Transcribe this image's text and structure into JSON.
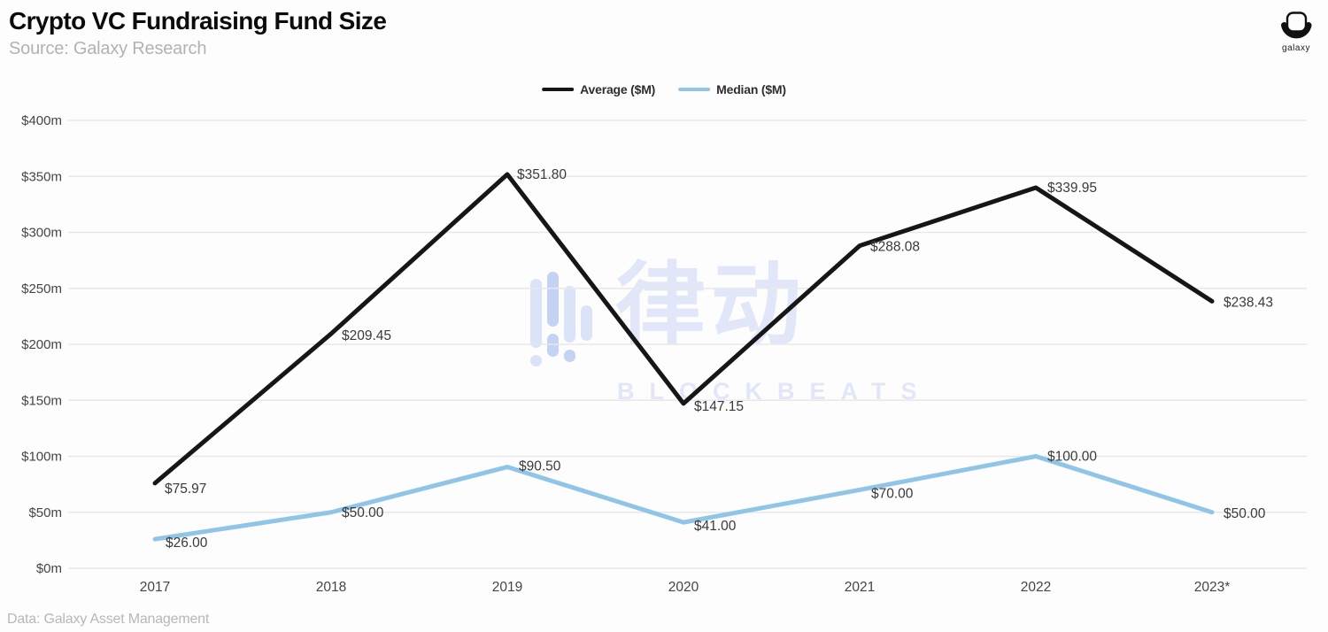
{
  "header": {
    "title": "Crypto VC Fundraising Fund Size",
    "subtitle": "Source: Galaxy Research"
  },
  "brand": {
    "name": "galaxy"
  },
  "legend": {
    "items": [
      {
        "label": "Average ($M)",
        "color": "#161616"
      },
      {
        "label": "Median ($M)",
        "color": "#90c5e8"
      }
    ]
  },
  "watermark": {
    "cjk": "律动",
    "latin": "BLOCKBEATS"
  },
  "footer": {
    "text": "Data: Galaxy Asset Management"
  },
  "chart_data": {
    "type": "line",
    "title": "Crypto VC Fundraising Fund Size",
    "categories": [
      "2017",
      "2018",
      "2019",
      "2020",
      "2021",
      "2022",
      "2023*"
    ],
    "series": [
      {
        "name": "Average ($M)",
        "color": "#161616",
        "values": [
          75.97,
          209.45,
          351.8,
          147.15,
          288.08,
          339.95,
          238.43
        ],
        "point_labels": [
          "$75.97",
          "$209.45",
          "$351.80",
          "$147.15",
          "$288.08",
          "$339.95",
          "$238.43"
        ]
      },
      {
        "name": "Median ($M)",
        "color": "#90c5e8",
        "values": [
          26.0,
          50.0,
          90.5,
          41.0,
          70.0,
          100.0,
          50.0
        ],
        "point_labels": [
          "$26.00",
          "$50.00",
          "$90.50",
          "$41.00",
          "$70.00",
          "$100.00",
          "$50.00"
        ]
      }
    ],
    "y_ticks": {
      "values": [
        0,
        50,
        100,
        150,
        200,
        250,
        300,
        350,
        400
      ],
      "labels": [
        "$0m",
        "$50m",
        "$100m",
        "$150m",
        "$200m",
        "$250m",
        "$300m",
        "$350m",
        "$400m"
      ]
    },
    "ylim": [
      0,
      400
    ],
    "grid": true,
    "legend_position": "top-center",
    "grid_color": "#e8e8e8",
    "axis_label_color": "#454545",
    "point_label_color": "#3a3a3a"
  }
}
